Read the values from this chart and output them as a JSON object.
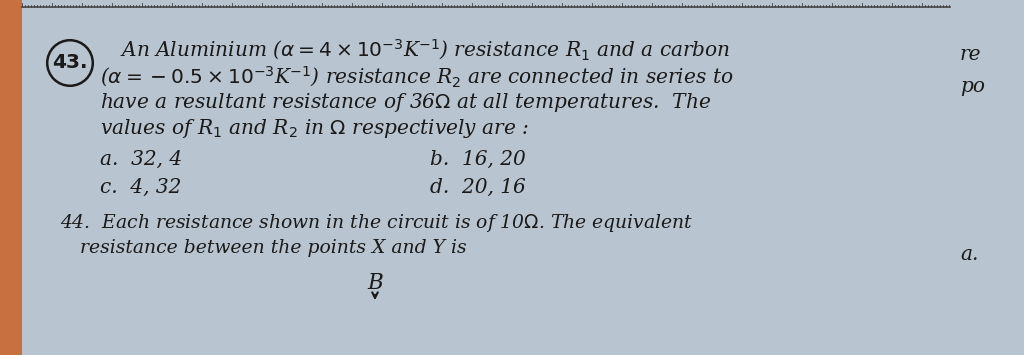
{
  "bg_color": "#b8c4d0",
  "top_line_color": "#444444",
  "left_strip_color": "#c87040",
  "q43_line1": "An Aluminium ($\\alpha =4\\times 10^{-3}$K$^{-1}$) resistance R$_1$ and a carbon",
  "q43_line2": "($\\alpha =-0.5\\times 10^{-3}$K$^{-1}$) resistance R$_2$ are connected in series to",
  "q43_line3": "have a resultant resistance of 36$\\Omega$ at all temperatures.  The",
  "q43_line4": "values of R$_1$ and R$_2$ in $\\Omega$ respectively are :",
  "opt_a": "a.  32, 4",
  "opt_b": "b.  16, 20",
  "opt_c": "c.  4, 32",
  "opt_d": "d.  20, 16",
  "q44_line1": "44.  Each resistance shown in the circuit is of 10$\\Omega$. The equivalent",
  "q44_line2": "resistance between the points X and Y is",
  "q44_B": "B",
  "right_text1": "re",
  "right_text2": "po",
  "right_text3": "a.",
  "text_color": "#1a1a1a",
  "font_size_main": 14.5,
  "font_size_small": 13.5
}
